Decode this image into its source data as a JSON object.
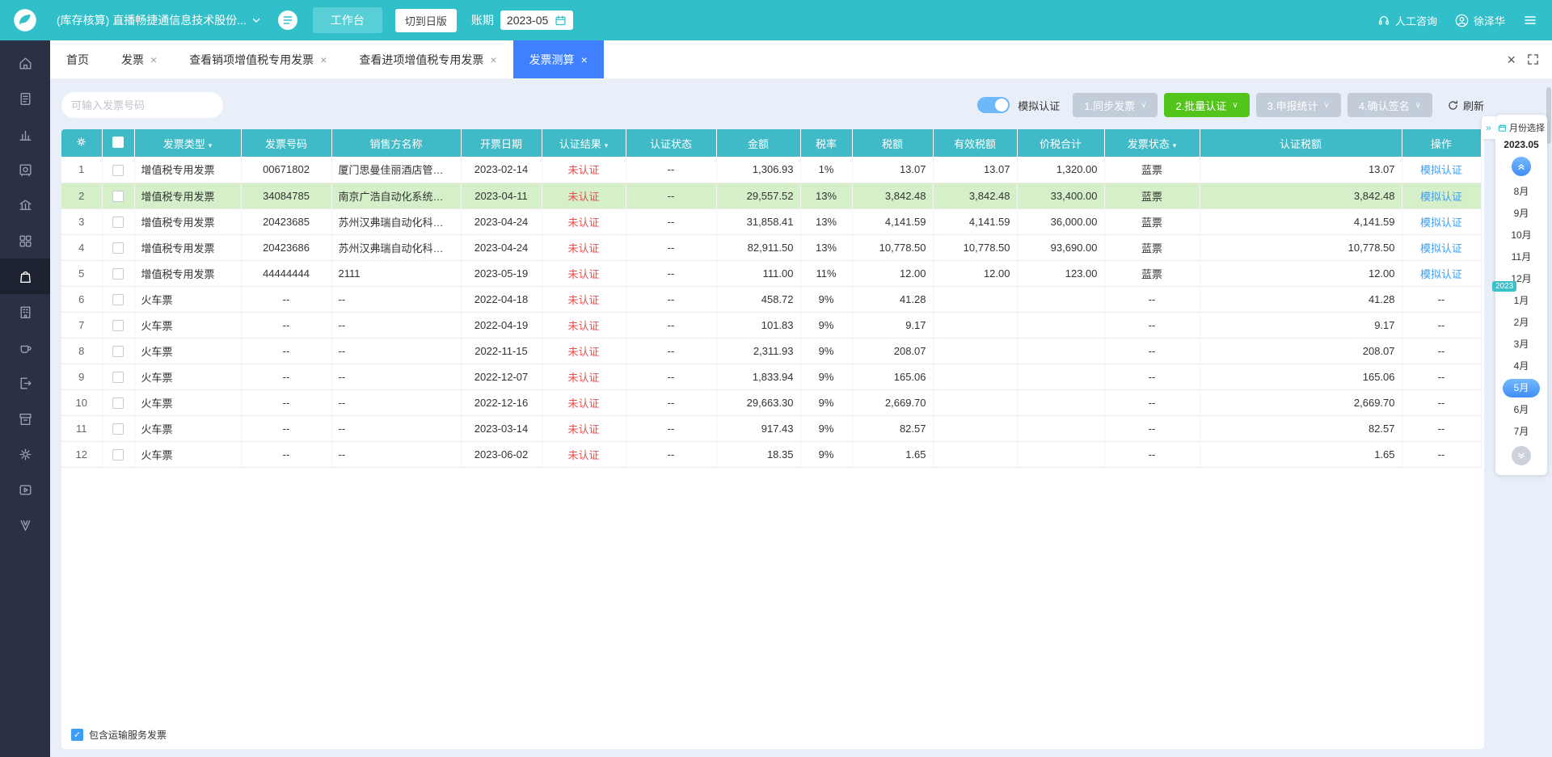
{
  "colors": {
    "topbar": "#31bfc9",
    "sidebar": "#2b3144",
    "active_tab": "#4080ff",
    "table_header": "#41bac7",
    "selected_row": "#d5efc9",
    "green_button": "#52c41a",
    "danger_text": "#e65050",
    "link_text": "#3d9df6"
  },
  "topbar": {
    "company": "(库存核算) 直播畅捷通信息技术股份...",
    "workbench_label": "工作台",
    "switch_label": "切到日版",
    "period_label": "账期",
    "period_value": "2023-05",
    "support_label": "人工咨询",
    "username": "徐泽华"
  },
  "sidebar": {
    "items": [
      {
        "name": "home",
        "active": false
      },
      {
        "name": "report",
        "active": false
      },
      {
        "name": "chart",
        "active": false
      },
      {
        "name": "safe",
        "active": false
      },
      {
        "name": "bank",
        "active": false
      },
      {
        "name": "apps",
        "active": false
      },
      {
        "name": "purchase",
        "active": true
      },
      {
        "name": "building",
        "active": false
      },
      {
        "name": "coffee",
        "active": false
      },
      {
        "name": "exit",
        "active": false
      },
      {
        "name": "archive",
        "active": false
      },
      {
        "name": "settings",
        "active": false
      },
      {
        "name": "media",
        "active": false
      },
      {
        "name": "logo-v",
        "active": false
      }
    ]
  },
  "tabs": [
    {
      "label": "首页",
      "closable": false,
      "active": false
    },
    {
      "label": "发票",
      "closable": true,
      "active": false
    },
    {
      "label": "查看销项增值税专用发票",
      "closable": true,
      "active": false
    },
    {
      "label": "查看进项增值税专用发票",
      "closable": true,
      "active": false
    },
    {
      "label": "发票测算",
      "closable": true,
      "active": true
    }
  ],
  "toolbar": {
    "search_placeholder": "可输入发票号码",
    "toggle_label": "模拟认证",
    "toggle_on": true,
    "buttons": [
      {
        "label": "1.同步发票",
        "variant": "disabled"
      },
      {
        "label": "2.批量认证",
        "variant": "green"
      },
      {
        "label": "3.申报统计",
        "variant": "disabled"
      },
      {
        "label": "4.确认签名",
        "variant": "disabled"
      }
    ],
    "refresh_label": "刷新"
  },
  "table": {
    "columns": [
      {
        "key": "type",
        "label": "发票类型",
        "sortable": true
      },
      {
        "key": "number",
        "label": "发票号码",
        "sortable": false
      },
      {
        "key": "seller",
        "label": "销售方名称",
        "sortable": false
      },
      {
        "key": "date",
        "label": "开票日期",
        "sortable": false
      },
      {
        "key": "result",
        "label": "认证结果",
        "sortable": true
      },
      {
        "key": "status",
        "label": "认证状态",
        "sortable": false
      },
      {
        "key": "amount",
        "label": "金额",
        "sortable": false
      },
      {
        "key": "rate",
        "label": "税率",
        "sortable": false
      },
      {
        "key": "tax",
        "label": "税额",
        "sortable": false
      },
      {
        "key": "valid_tax",
        "label": "有效税额",
        "sortable": false
      },
      {
        "key": "total",
        "label": "价税合计",
        "sortable": false
      },
      {
        "key": "inv_status",
        "label": "发票状态",
        "sortable": true
      },
      {
        "key": "auth_tax",
        "label": "认证税额",
        "sortable": false
      },
      {
        "key": "op",
        "label": "操作",
        "sortable": false
      }
    ],
    "rows": [
      {
        "index": 1,
        "selected": false,
        "type": "增值税专用发票",
        "number": "00671802",
        "seller": "厦门思曼佳丽酒店管理有限",
        "date": "2023-02-14",
        "result": "未认证",
        "status": "--",
        "amount": "1,306.93",
        "rate": "1%",
        "tax": "13.07",
        "valid_tax": "13.07",
        "total": "1,320.00",
        "inv_status": "蓝票",
        "auth_tax": "13.07",
        "op": "模拟认证"
      },
      {
        "index": 2,
        "selected": true,
        "type": "增值税专用发票",
        "number": "34084785",
        "seller": "南京广浩自动化系统有限责",
        "date": "2023-04-11",
        "result": "未认证",
        "status": "--",
        "amount": "29,557.52",
        "rate": "13%",
        "tax": "3,842.48",
        "valid_tax": "3,842.48",
        "total": "33,400.00",
        "inv_status": "蓝票",
        "auth_tax": "3,842.48",
        "op": "模拟认证"
      },
      {
        "index": 3,
        "selected": false,
        "type": "增值税专用发票",
        "number": "20423685",
        "seller": "苏州汉弗瑞自动化科技有限",
        "date": "2023-04-24",
        "result": "未认证",
        "status": "--",
        "amount": "31,858.41",
        "rate": "13%",
        "tax": "4,141.59",
        "valid_tax": "4,141.59",
        "total": "36,000.00",
        "inv_status": "蓝票",
        "auth_tax": "4,141.59",
        "op": "模拟认证"
      },
      {
        "index": 4,
        "selected": false,
        "type": "增值税专用发票",
        "number": "20423686",
        "seller": "苏州汉弗瑞自动化科技有限",
        "date": "2023-04-24",
        "result": "未认证",
        "status": "--",
        "amount": "82,911.50",
        "rate": "13%",
        "tax": "10,778.50",
        "valid_tax": "10,778.50",
        "total": "93,690.00",
        "inv_status": "蓝票",
        "auth_tax": "10,778.50",
        "op": "模拟认证"
      },
      {
        "index": 5,
        "selected": false,
        "type": "增值税专用发票",
        "number": "44444444",
        "seller": "2111",
        "date": "2023-05-19",
        "result": "未认证",
        "status": "--",
        "amount": "111.00",
        "rate": "11%",
        "tax": "12.00",
        "valid_tax": "12.00",
        "total": "123.00",
        "inv_status": "蓝票",
        "auth_tax": "12.00",
        "op": "模拟认证"
      },
      {
        "index": 6,
        "selected": false,
        "type": "火车票",
        "number": "--",
        "seller": "--",
        "date": "2022-04-18",
        "result": "未认证",
        "status": "--",
        "amount": "458.72",
        "rate": "9%",
        "tax": "41.28",
        "valid_tax": "",
        "total": "",
        "inv_status": "--",
        "auth_tax": "41.28",
        "op": "--"
      },
      {
        "index": 7,
        "selected": false,
        "type": "火车票",
        "number": "--",
        "seller": "--",
        "date": "2022-04-19",
        "result": "未认证",
        "status": "--",
        "amount": "101.83",
        "rate": "9%",
        "tax": "9.17",
        "valid_tax": "",
        "total": "",
        "inv_status": "--",
        "auth_tax": "9.17",
        "op": "--"
      },
      {
        "index": 8,
        "selected": false,
        "type": "火车票",
        "number": "--",
        "seller": "--",
        "date": "2022-11-15",
        "result": "未认证",
        "status": "--",
        "amount": "2,311.93",
        "rate": "9%",
        "tax": "208.07",
        "valid_tax": "",
        "total": "",
        "inv_status": "--",
        "auth_tax": "208.07",
        "op": "--"
      },
      {
        "index": 9,
        "selected": false,
        "type": "火车票",
        "number": "--",
        "seller": "--",
        "date": "2022-12-07",
        "result": "未认证",
        "status": "--",
        "amount": "1,833.94",
        "rate": "9%",
        "tax": "165.06",
        "valid_tax": "",
        "total": "",
        "inv_status": "--",
        "auth_tax": "165.06",
        "op": "--"
      },
      {
        "index": 10,
        "selected": false,
        "type": "火车票",
        "number": "--",
        "seller": "--",
        "date": "2022-12-16",
        "result": "未认证",
        "status": "--",
        "amount": "29,663.30",
        "rate": "9%",
        "tax": "2,669.70",
        "valid_tax": "",
        "total": "",
        "inv_status": "--",
        "auth_tax": "2,669.70",
        "op": "--"
      },
      {
        "index": 11,
        "selected": false,
        "type": "火车票",
        "number": "--",
        "seller": "--",
        "date": "2023-03-14",
        "result": "未认证",
        "status": "--",
        "amount": "917.43",
        "rate": "9%",
        "tax": "82.57",
        "valid_tax": "",
        "total": "",
        "inv_status": "--",
        "auth_tax": "82.57",
        "op": "--"
      },
      {
        "index": 12,
        "selected": false,
        "type": "火车票",
        "number": "--",
        "seller": "--",
        "date": "2023-06-02",
        "result": "未认证",
        "status": "--",
        "amount": "18.35",
        "rate": "9%",
        "tax": "1.65",
        "valid_tax": "",
        "total": "",
        "inv_status": "--",
        "auth_tax": "1.65",
        "op": "--"
      }
    ]
  },
  "month_panel": {
    "title": "月份选择",
    "period": "2023.05",
    "year_badge": "2023",
    "months": [
      "8月",
      "9月",
      "10月",
      "11月",
      "12月",
      "1月",
      "2月",
      "3月",
      "4月",
      "5月",
      "6月",
      "7月"
    ],
    "selected_month": "5月"
  },
  "footer": {
    "transport_checkbox_label": "包含运输服务发票",
    "checked": true
  }
}
